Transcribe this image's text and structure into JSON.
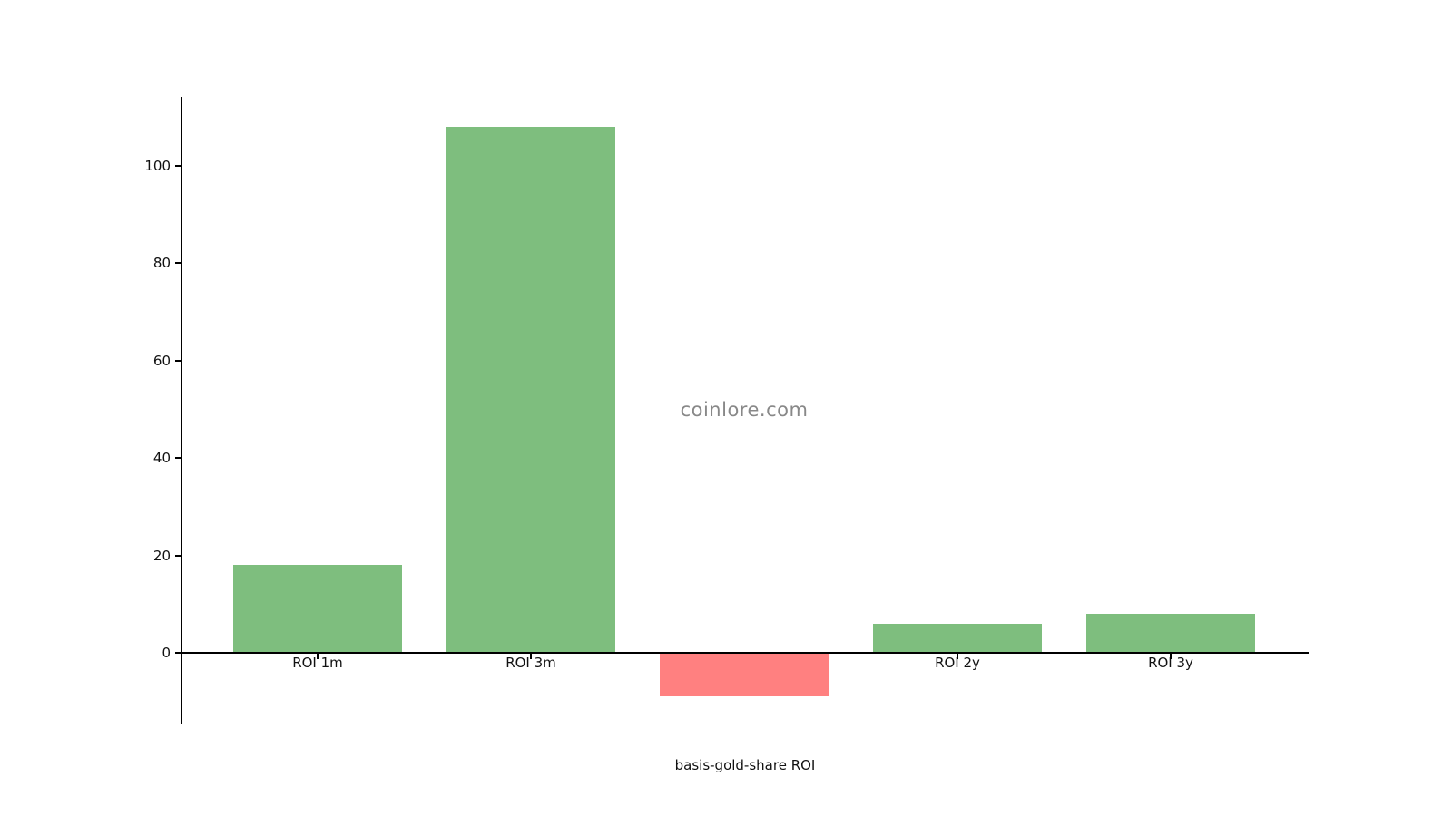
{
  "watermark": {
    "text": "coinlore.com",
    "color": "#888888"
  },
  "chart_data": {
    "type": "bar",
    "title": "basis-gold-share ROI",
    "categories": [
      "ROI 1m",
      "ROI 3m",
      "",
      "ROI 2y",
      "ROI 3y"
    ],
    "values": [
      18,
      108,
      -9,
      6,
      8
    ],
    "bar_colors": [
      "#7ebe7e",
      "#7ebe7e",
      "#ff8080",
      "#7ebe7e",
      "#7ebe7e"
    ],
    "positive_color": "#7ebe7e",
    "negative_color": "#ff8080",
    "y_ticks": [
      0,
      20,
      40,
      60,
      80,
      100
    ],
    "ylim": [
      -15,
      114
    ],
    "xlabel": "",
    "ylabel": "",
    "grid": false,
    "legend": "none",
    "axis_color": "#000000",
    "tick_label_color": "#111111",
    "title_color": "#111111",
    "note_hidden_label": "middle category tick label is covered by the negative bar"
  }
}
